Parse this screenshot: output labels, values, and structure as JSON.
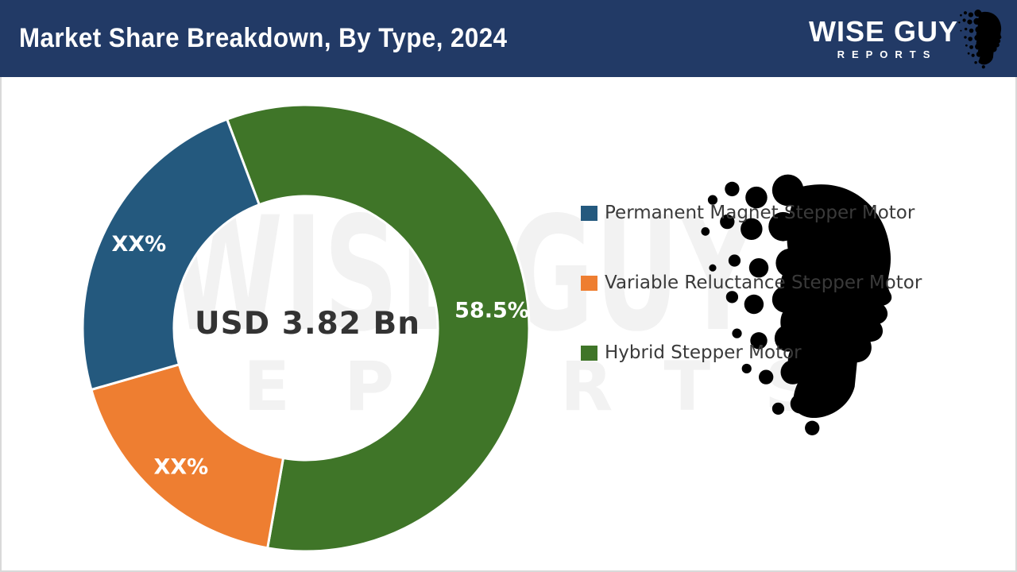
{
  "header": {
    "title": "Market Share Breakdown, By Type, 2024",
    "bg_color": "#223A66",
    "logo": {
      "line1": "WISE GUY",
      "line2": "REPORTS"
    }
  },
  "watermark": {
    "line1": "WISE GUY",
    "line2": "REPORTS"
  },
  "chart_data": {
    "type": "donut",
    "title": "Market Share Breakdown, By Type, 2024",
    "center_label": "USD 3.82 Bn",
    "start_angle_deg": -20.7,
    "direction": "clockwise",
    "donut_hole_ratio": 0.59,
    "slices": [
      {
        "name": "Hybrid Stepper Motor",
        "label": "58.5%",
        "value": 58.5,
        "color": "#3F7528"
      },
      {
        "name": "Variable Reluctance Stepper Motor",
        "label": "XX%",
        "value": 17.8,
        "color": "#EE7E31"
      },
      {
        "name": "Permanent Magnet Stepper Motor",
        "label": "XX%",
        "value": 23.7,
        "color": "#24597E"
      }
    ],
    "legend_position": "right",
    "legend": [
      {
        "label": "Permanent Magnet Stepper Motor",
        "color": "#24597E"
      },
      {
        "label": "Variable Reluctance Stepper Motor",
        "color": "#EE7E31"
      },
      {
        "label": "Hybrid Stepper Motor",
        "color": "#3F7528"
      }
    ]
  }
}
